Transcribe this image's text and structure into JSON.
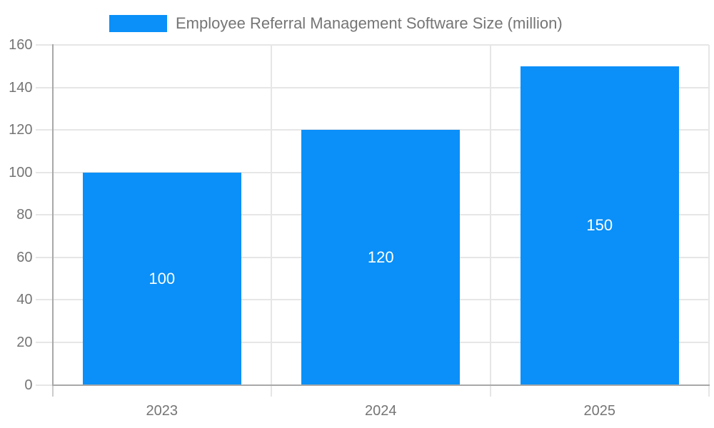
{
  "legend": {
    "label": "Employee Referral Management Software Size (million)"
  },
  "chart_data": {
    "type": "bar",
    "title": "Employee Referral Management Software Size (million)",
    "categories": [
      "2023",
      "2024",
      "2025"
    ],
    "values": [
      100,
      120,
      150
    ],
    "series": [
      {
        "name": "Employee Referral Management Software Size (million)",
        "values": [
          100,
          120,
          150
        ]
      }
    ],
    "xlabel": "",
    "ylabel": "",
    "ylim": [
      0,
      160
    ],
    "yticks": [
      0,
      20,
      40,
      60,
      80,
      100,
      120,
      140,
      160
    ],
    "grid": true,
    "legend_position": "top",
    "value_labels": [
      "100",
      "120",
      "150"
    ],
    "colors": {
      "bar": "#0a90f8",
      "value_label": "#ffffff",
      "axis_line": "#a8a8a8",
      "axis_below_tick": "#cccccc",
      "gridline": "#e6e6e6",
      "text": "#757575"
    }
  }
}
